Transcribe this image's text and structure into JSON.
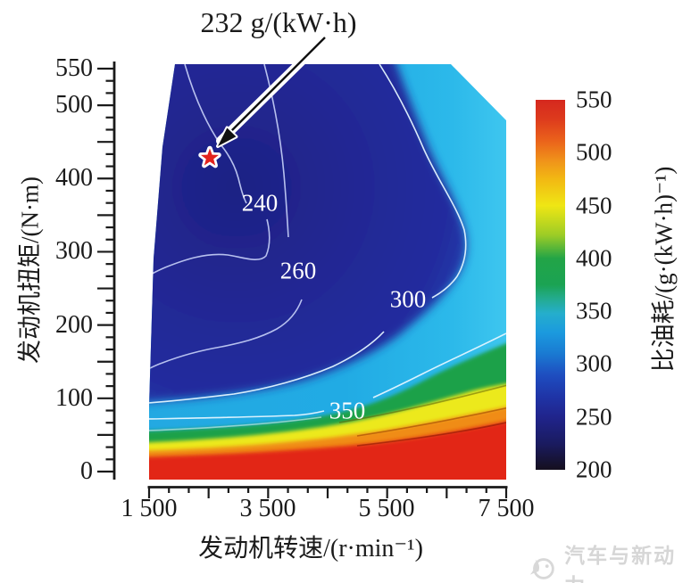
{
  "annotation": {
    "text": "232 g/(kW·h)"
  },
  "axes": {
    "x": {
      "title": "发动机转速/(r·min⁻¹)",
      "range": [
        1500,
        7500
      ],
      "major_step": 1000,
      "minors_per_major": 2,
      "tick_values": [
        1500,
        3500,
        5500,
        7500
      ],
      "tick_labels": [
        "1 500",
        "3 500",
        "5 500",
        "7 500"
      ]
    },
    "y": {
      "title": "发动机扭矩/(N·m)",
      "range": [
        0,
        550
      ],
      "major_step": 50,
      "minors_per_major": 2,
      "tick_values": [
        0,
        100,
        200,
        300,
        400,
        500,
        550
      ],
      "tick_labels": [
        "0",
        "100",
        "200",
        "300",
        "400",
        "500",
        "550"
      ]
    }
  },
  "colorbar": {
    "title": "比油耗/(g·(kW·h)⁻¹)",
    "range": [
      200,
      550
    ],
    "tick_labels": [
      "550",
      "500",
      "450",
      "400",
      "350",
      "300",
      "250",
      "200"
    ],
    "stops": [
      {
        "v": 200,
        "color": "#150f1e"
      },
      {
        "v": 225,
        "color": "#1a1b60"
      },
      {
        "v": 250,
        "color": "#20248c"
      },
      {
        "v": 270,
        "color": "#1f35a8"
      },
      {
        "v": 290,
        "color": "#1e4ec0"
      },
      {
        "v": 310,
        "color": "#1a7ad2"
      },
      {
        "v": 330,
        "color": "#1b9ade"
      },
      {
        "v": 348,
        "color": "#25aecc"
      },
      {
        "v": 362,
        "color": "#23ab8e"
      },
      {
        "v": 375,
        "color": "#1ba353"
      },
      {
        "v": 400,
        "color": "#22a447"
      },
      {
        "v": 422,
        "color": "#9ccc26"
      },
      {
        "v": 450,
        "color": "#efe614"
      },
      {
        "v": 475,
        "color": "#f2b813"
      },
      {
        "v": 492,
        "color": "#f0941a"
      },
      {
        "v": 512,
        "color": "#ea611b"
      },
      {
        "v": 532,
        "color": "#dd3a1d"
      },
      {
        "v": 550,
        "color": "#d5281e"
      }
    ]
  },
  "contours": {
    "labels": [
      "240",
      "260",
      "300",
      "350"
    ]
  },
  "watermark": {
    "text": "汽车与新动力"
  },
  "chart_data": {
    "type": "heatmap",
    "subtype": "filled_contour_map",
    "xlabel": "发动机转速/(r·min⁻¹)",
    "ylabel": "发动机扭矩/(N·m)",
    "zlabel": "比油耗/(g·(kW·h)⁻¹)",
    "xlim": [
      1500,
      7500
    ],
    "ylim": [
      0,
      550
    ],
    "zlim": [
      200,
      550
    ],
    "x_ticks": [
      1500,
      3500,
      5500,
      7500
    ],
    "y_ticks": [
      0,
      100,
      200,
      300,
      400,
      500,
      550
    ],
    "colorbar_ticks": [
      200,
      250,
      300,
      350,
      400,
      450,
      500,
      550
    ],
    "labeled_contours": [
      240,
      260,
      300,
      350
    ],
    "best_point": {
      "bsfc": 232,
      "engine_speed": 2500,
      "torque": 430,
      "marker": "red-star"
    },
    "annotation": "232 g/(kW·h)",
    "contour_lines": [
      {
        "level": 240,
        "points_rpm_torque": [
          [
            2100,
            550
          ],
          [
            2700,
            446
          ],
          [
            3000,
            400
          ],
          [
            3135,
            366
          ],
          [
            3480,
            344
          ],
          [
            3465,
            294
          ],
          [
            2820,
            296
          ],
          [
            1770,
            279
          ],
          [
            1500,
            268
          ]
        ]
      },
      {
        "level": 260,
        "points_rpm_torque": [
          [
            3435,
            550
          ],
          [
            3765,
            406
          ],
          [
            3840,
            320
          ],
          [
            4065,
            235
          ],
          [
            3645,
            195
          ],
          [
            2715,
            170
          ],
          [
            1725,
            148
          ],
          [
            1485,
            140
          ]
        ]
      },
      {
        "level": 300,
        "points_rpm_torque": [
          [
            5370,
            550
          ],
          [
            6120,
            439
          ],
          [
            6795,
            330
          ],
          [
            6675,
            266
          ],
          [
            6255,
            237
          ],
          [
            5445,
            191
          ],
          [
            4590,
            144
          ],
          [
            2925,
            106
          ],
          [
            1485,
            94
          ]
        ]
      },
      {
        "level": 350,
        "points_rpm_torque": [
          [
            1500,
            72
          ],
          [
            3945,
            77
          ],
          [
            5265,
            101
          ],
          [
            6105,
            134
          ],
          [
            7500,
            189
          ]
        ]
      }
    ],
    "description": "Engine BSFC map: lowest specific fuel consumption (~232 g/kWh, red star) near 2500 r/min and 430 N·m; consumption increases toward low torque (bottom red band >550) and high engine speed (right, cyan ~300-350)."
  }
}
